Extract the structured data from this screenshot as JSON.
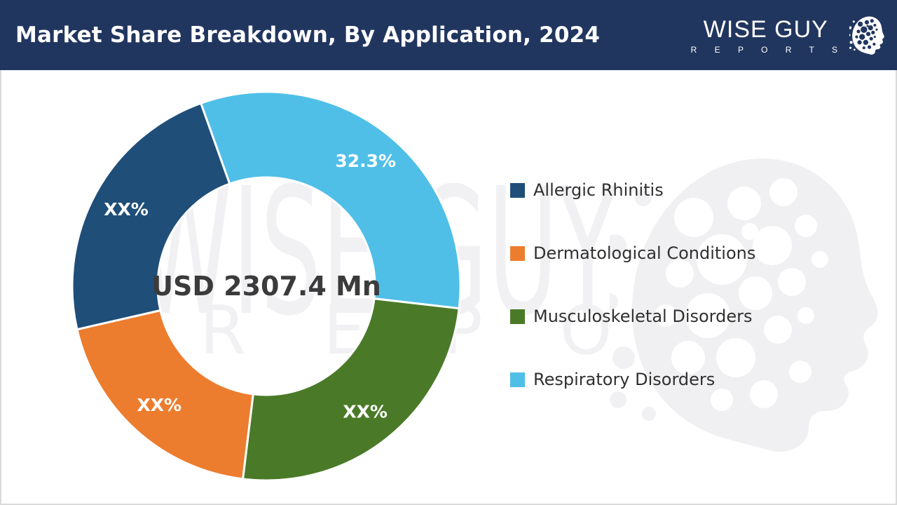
{
  "header": {
    "title": "Market Share Breakdown, By Application, 2024",
    "bg_color": "#21365F",
    "logo": {
      "name": "WISE GUY",
      "sub": "R E P O R T S"
    }
  },
  "watermark": {
    "name": "WISE GUY",
    "sub": "R E P O R T S"
  },
  "chart_data": {
    "type": "pie",
    "subtype": "donut",
    "title": "Market Share Breakdown, By Application, 2024",
    "center_label": "USD 2307.4 Mn",
    "start_angle_deg": 109.7,
    "direction": "clockwise",
    "inner_radius_ratio": 0.56,
    "legend_position": "right",
    "segments": [
      {
        "name": "Respiratory Disorders",
        "value_pct": 32.3,
        "label": "32.3%",
        "color": "#4FBFE8"
      },
      {
        "name": "Musculoskeletal Disorders",
        "value_pct": 25.1,
        "label": "XX%",
        "color": "#4A7A28"
      },
      {
        "name": "Dermatological Conditions",
        "value_pct": 19.5,
        "label": "XX%",
        "color": "#EC7D2F"
      },
      {
        "name": "Allergic Rhinitis",
        "value_pct": 23.1,
        "label": "XX%",
        "color": "#1F4E79"
      }
    ],
    "legend": [
      {
        "label": "Allergic Rhinitis",
        "color": "#1F4E79"
      },
      {
        "label": "Dermatological Conditions",
        "color": "#EC7D2F"
      },
      {
        "label": "Musculoskeletal Disorders",
        "color": "#4A7A28"
      },
      {
        "label": "Respiratory Disorders",
        "color": "#4FBFE8"
      }
    ]
  },
  "colors": {
    "header_bg": "#21365F",
    "watermark": "#F1F1F4",
    "center_text": "#3B3B3B",
    "legend_text": "#303030",
    "separator": "#FFFFFF"
  }
}
